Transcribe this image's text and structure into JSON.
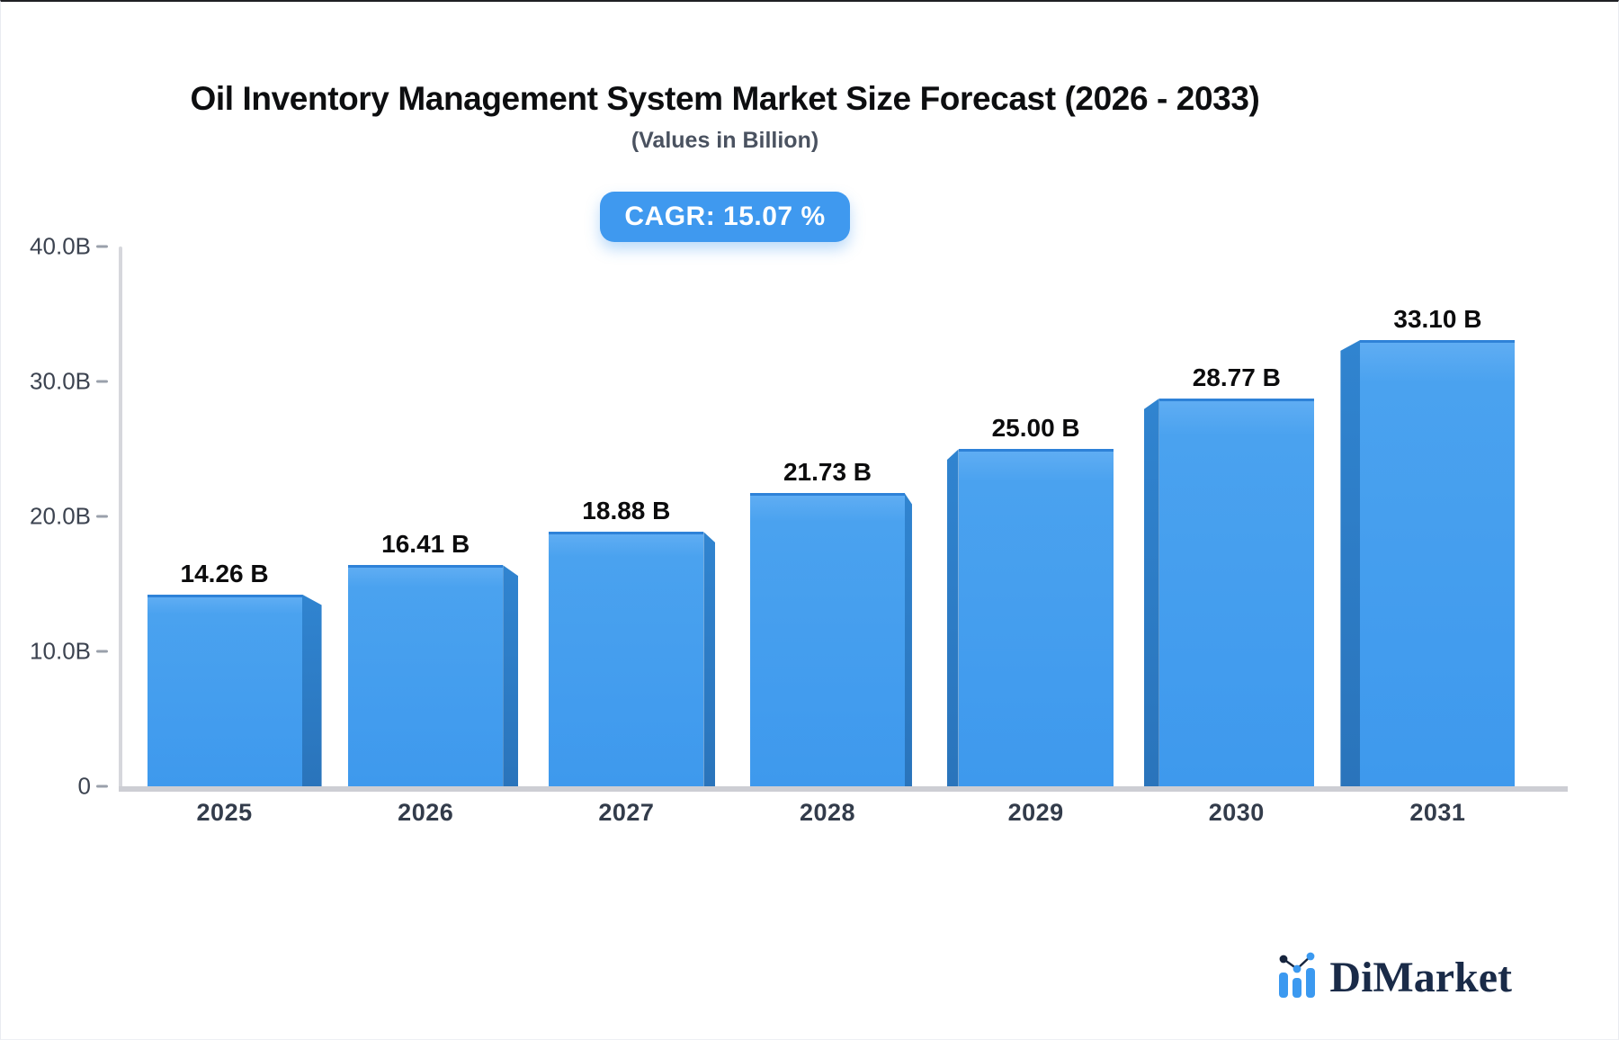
{
  "header": {
    "title": "Oil Inventory Management System Market Size Forecast (2026 - 2033)",
    "subtitle": "(Values in Billion)"
  },
  "badge": {
    "label": "CAGR: 15.07 %"
  },
  "chart_data": {
    "type": "bar",
    "categories": [
      "2025",
      "2026",
      "2027",
      "2028",
      "2029",
      "2030",
      "2031"
    ],
    "values": [
      14.26,
      16.41,
      18.88,
      21.73,
      25.0,
      28.77,
      33.1
    ],
    "value_labels": [
      "14.26 B",
      "16.41 B",
      "18.88 B",
      "21.73 B",
      "25.00 B",
      "28.77 B",
      "33.10 B"
    ],
    "title": "Oil Inventory Management System Market Size Forecast (2026 - 2033)",
    "subtitle": "(Values in Billion)",
    "cagr_annotation": "CAGR: 15.07 %",
    "xlabel": "",
    "ylabel": "",
    "ylim": [
      0,
      40
    ],
    "yticks": [
      {
        "value": 40,
        "label": "40.0B"
      },
      {
        "value": 30,
        "label": "30.0B"
      },
      {
        "value": 20,
        "label": "20.0B"
      },
      {
        "value": 10,
        "label": "10.0B"
      },
      {
        "value": 0,
        "label": "0"
      }
    ],
    "grid": false,
    "legend": null,
    "bar_style": "3d-perspective",
    "colors": {
      "bar_face": "#3f9aee",
      "bar_face_light": "#5fadf3",
      "bar_side": "#2b79c2",
      "bar_top_edge": "#2e82d8",
      "axis": "#cdced4",
      "tick_text": "#3c4350",
      "value_text": "#0c0c0d",
      "badge_bg": "#3f99ef",
      "badge_text": "#ffffff"
    }
  },
  "branding": {
    "logo_text": "DiMarket",
    "logo_icon": "bar-chart-trend-icon",
    "logo_text_color": "#1a2b48",
    "logo_bar_color": "#3b99f0",
    "logo_line_color": "#16243d"
  }
}
